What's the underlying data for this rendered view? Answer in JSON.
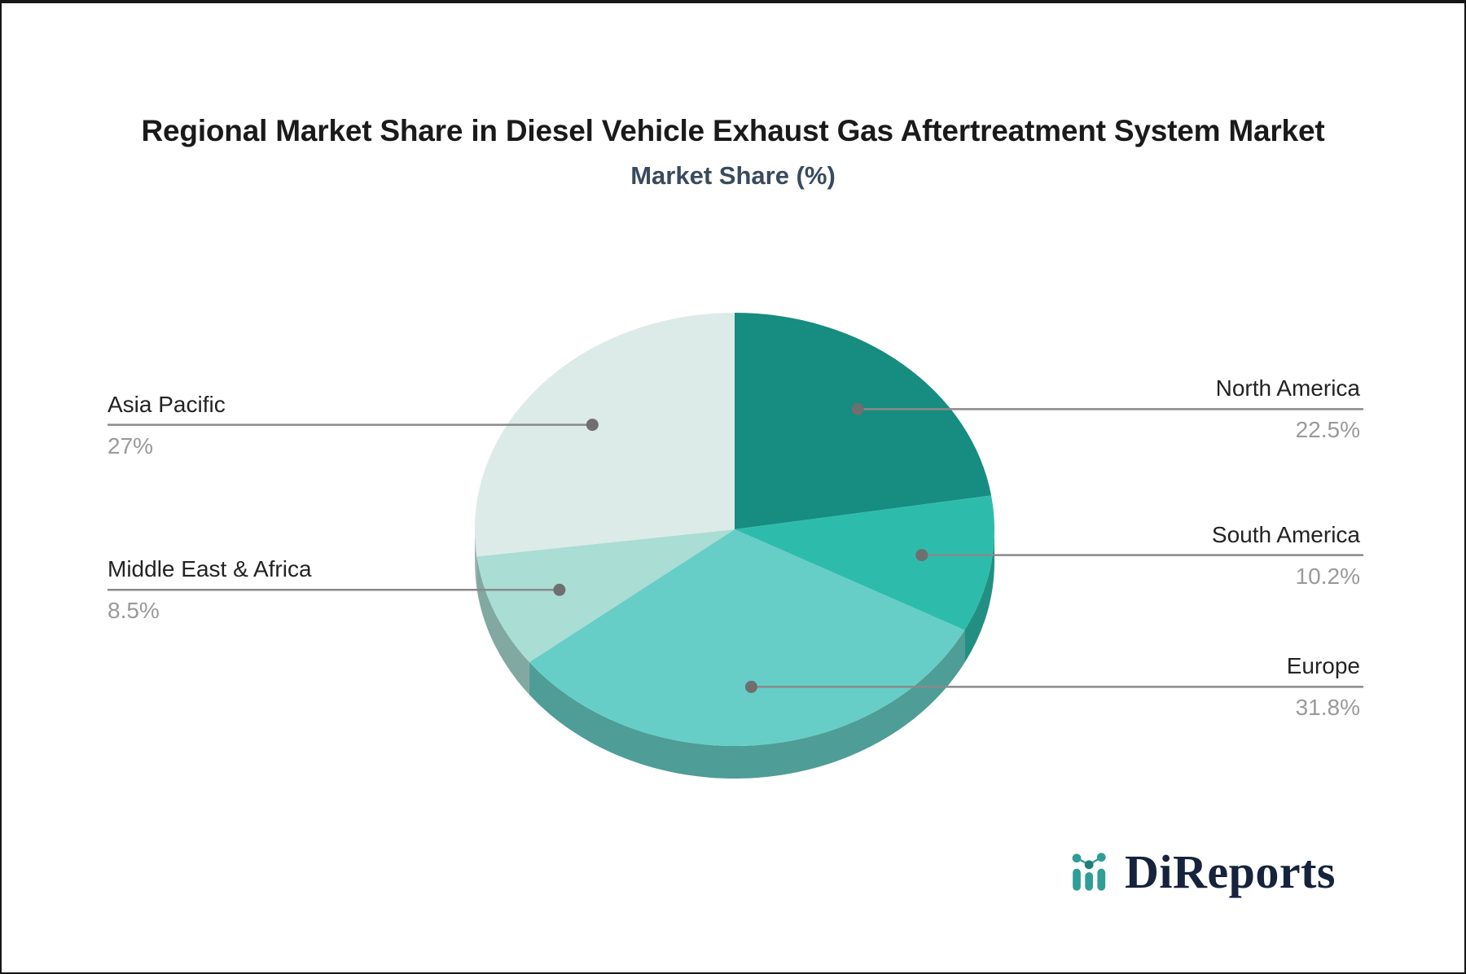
{
  "header": {
    "title": "Regional Market Share in Diesel Vehicle Exhaust Gas Aftertreatment System Market",
    "subtitle": "Market Share (%)"
  },
  "chart_data": {
    "type": "pie",
    "style": "3d-pie-with-depth",
    "title": "Regional Market Share in Diesel Vehicle Exhaust Gas Aftertreatment System Market",
    "subtitle": "Market Share (%)",
    "unit": "%",
    "start_angle_deg": -90,
    "direction": "clockwise",
    "legend_position": "leader-line-callouts",
    "categories": [
      "North America",
      "South America",
      "Europe",
      "Middle East & Africa",
      "Asia Pacific"
    ],
    "values": [
      22.5,
      10.2,
      31.8,
      8.5,
      27
    ],
    "value_labels": [
      "22.5%",
      "10.2%",
      "31.8%",
      "8.5%",
      "27%"
    ],
    "slice_colors": [
      "#178C80",
      "#2DBCAB",
      "#66CEC6",
      "#AADDD4",
      "#DCEBE8"
    ]
  },
  "style": {
    "leader_line_color": "#8a8a8a",
    "leader_dot_color": "#6f6f6f",
    "label_name_color": "#232323",
    "label_value_color": "#9a9a9a",
    "wall_darken_factor": 0.76
  },
  "branding": {
    "logo_text": "DiReports",
    "logo_icon": "bar-chart-trend-icon",
    "logo_text_color": "#16233c",
    "logo_icon_color": "#2f9e96",
    "logo_icon_mid_dot_color": "#1f7e77"
  }
}
